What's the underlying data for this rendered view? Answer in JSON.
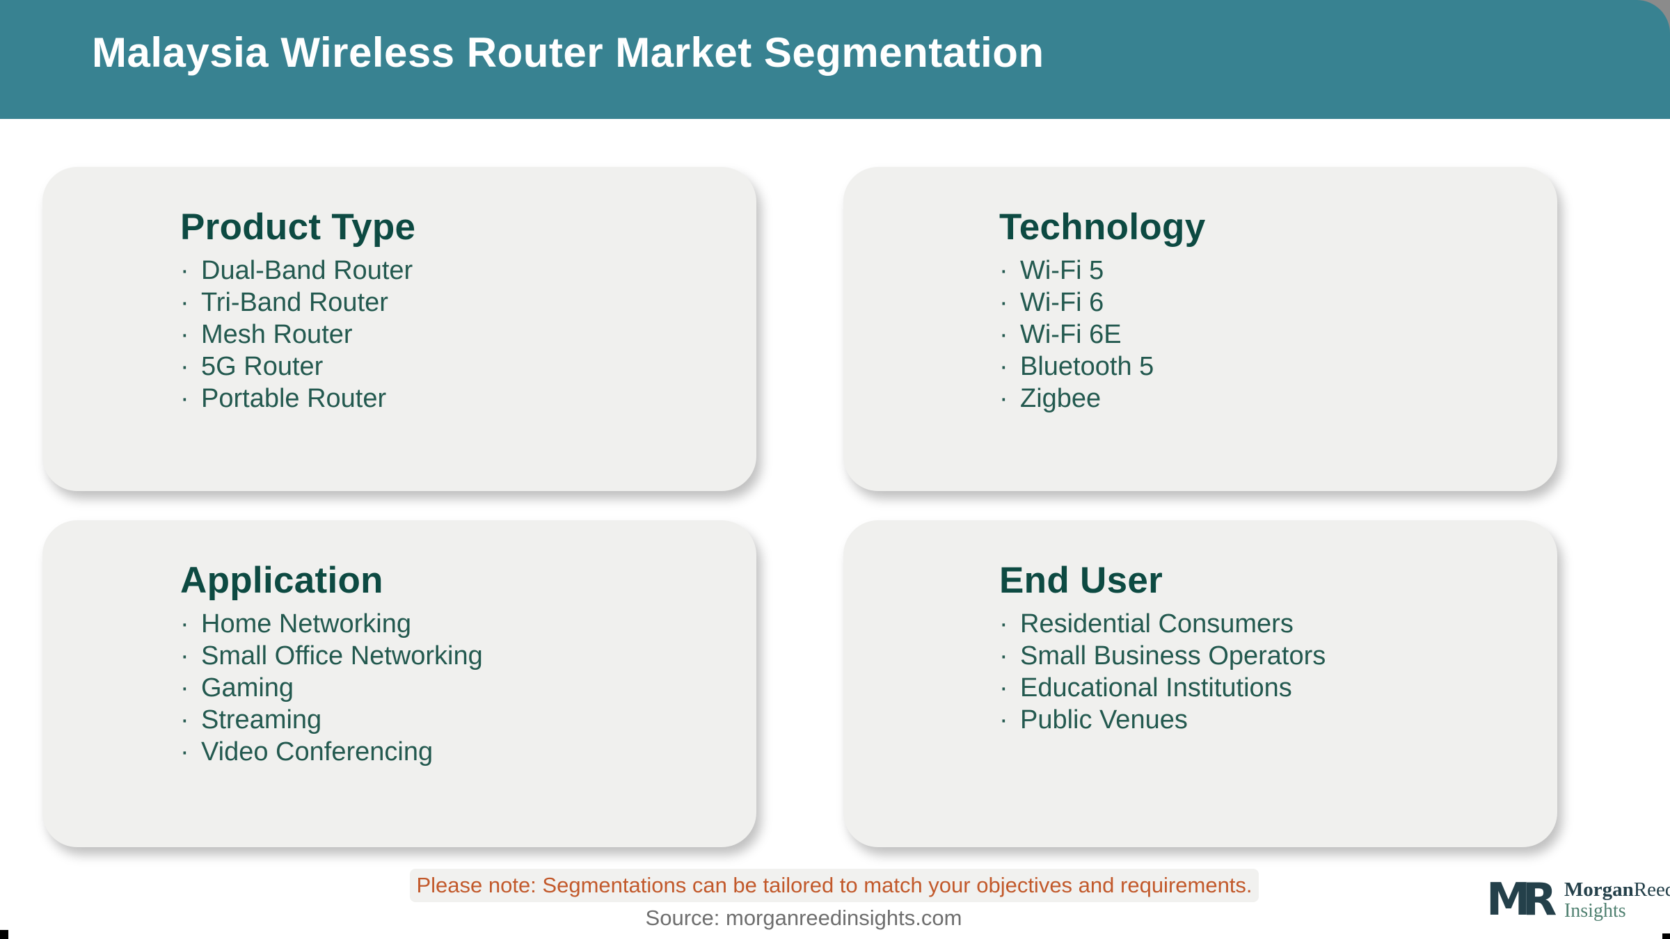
{
  "header": {
    "title": "Malaysia Wireless Router Market Segmentation"
  },
  "cards": [
    {
      "title": "Product Type",
      "items": [
        "Dual-Band Router",
        "Tri-Band Router",
        "Mesh Router",
        "5G Router",
        "Portable Router"
      ]
    },
    {
      "title": "Technology",
      "items": [
        "Wi-Fi 5",
        "Wi-Fi 6",
        "Wi-Fi 6E",
        "Bluetooth 5",
        "Zigbee"
      ]
    },
    {
      "title": "Application",
      "items": [
        "Home Networking",
        "Small Office Networking",
        "Gaming",
        "Streaming",
        "Video Conferencing"
      ]
    },
    {
      "title": "End User",
      "items": [
        "Residential Consumers",
        "Small Business Operators",
        "Educational Institutions",
        "Public Venues"
      ]
    }
  ],
  "footer": {
    "note": "Please note: Segmentations can be tailored to match your objectives and requirements.",
    "source": "Source: morganreedinsights.com"
  },
  "logo": {
    "monogram": "MR",
    "name_bold": "Morgan",
    "name_regular": "Reed",
    "subtitle": "Insights"
  },
  "ui": {
    "bullet": "·"
  },
  "colors": {
    "header_teal": "#388291",
    "card_bg": "#f0f0ee",
    "heading_green": "#0d4a42",
    "body_green": "#23594f",
    "note_orange": "#c2592b",
    "note_bg": "#f1f1ef",
    "source_gray": "#6e6e6e",
    "logo_navy": "#24404a",
    "logo_teal": "#4f8070"
  }
}
